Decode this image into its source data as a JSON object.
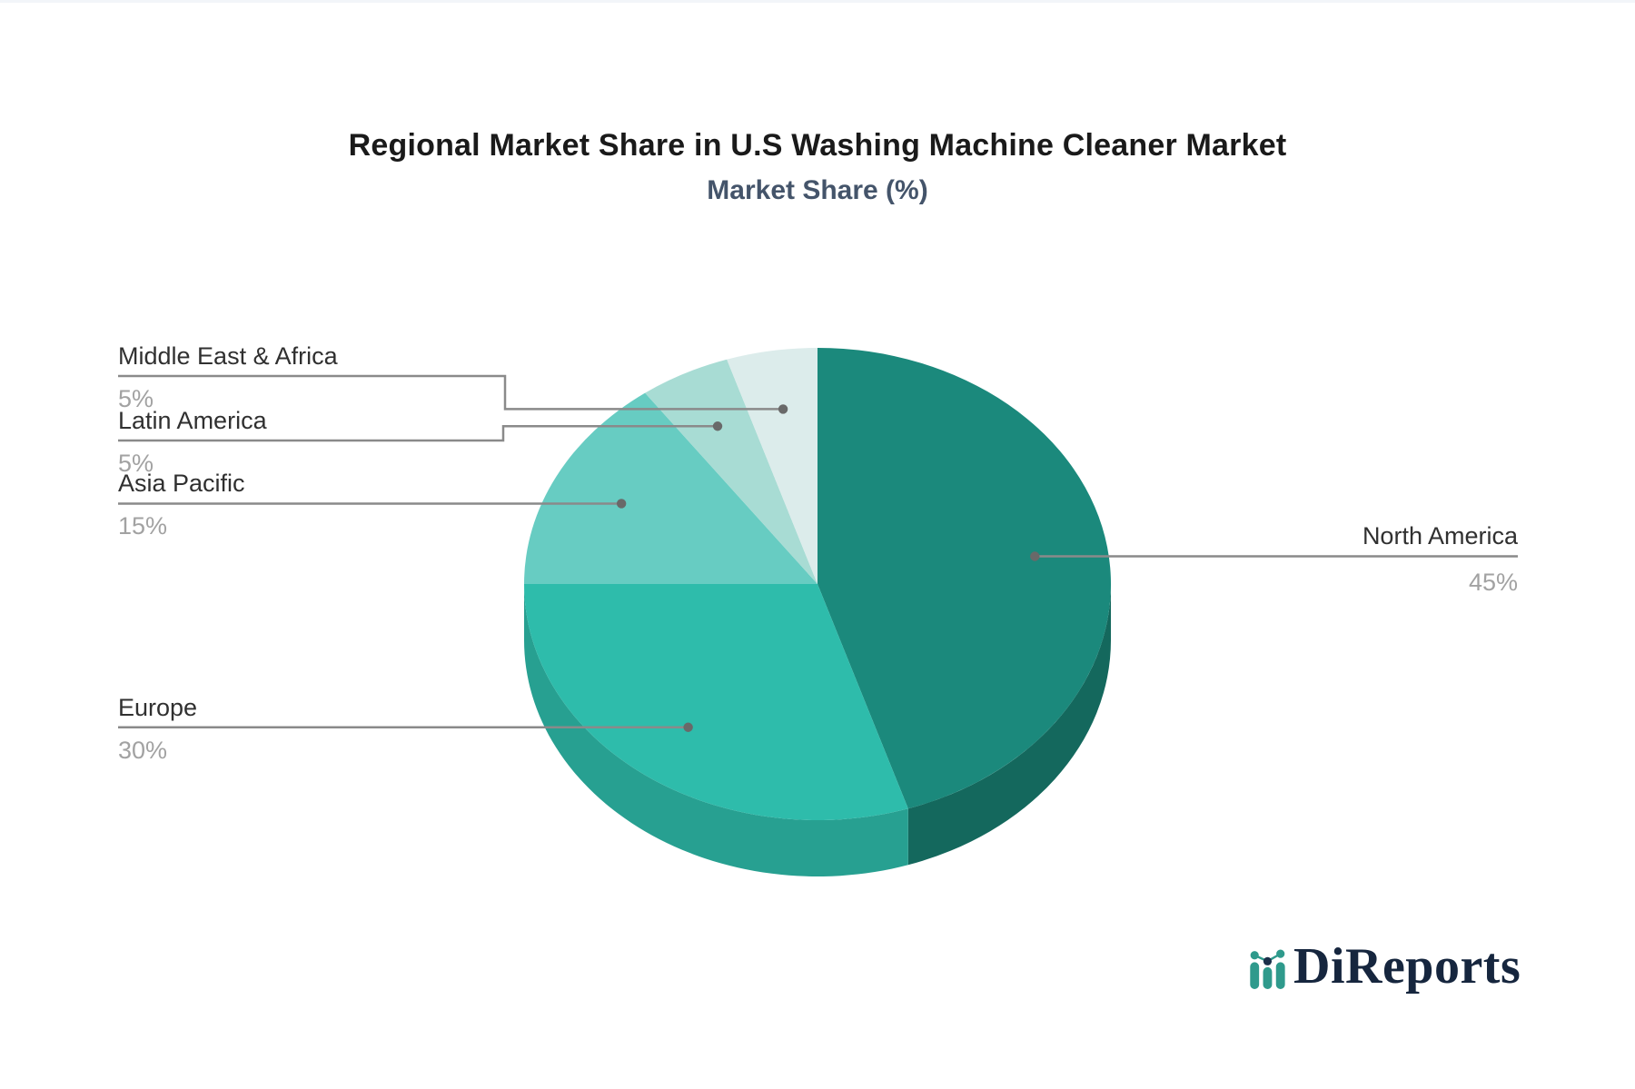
{
  "header": {
    "title": "Regional Market Share in U.S Washing Machine Cleaner Market",
    "subtitle": "Market Share (%)"
  },
  "chart_data": {
    "type": "pie",
    "style": "pie-3d",
    "title": "Regional Market Share in U.S Washing Machine Cleaner Market",
    "subtitle": "Market Share (%)",
    "unit": "%",
    "start_angle_deg": 0,
    "direction": "clockwise-from-top",
    "legend": "none",
    "labels": "callout-lines",
    "slices": [
      {
        "label": "North America",
        "value": 45,
        "pct_label": "45%",
        "color": "#1b897c",
        "side_color": "#14685d"
      },
      {
        "label": "Europe",
        "value": 30,
        "pct_label": "30%",
        "color": "#2ebcab",
        "side_color": "#27a091"
      },
      {
        "label": "Asia Pacific",
        "value": 15,
        "pct_label": "15%",
        "color": "#67ccc2",
        "side_color": "#4fb3a8"
      },
      {
        "label": "Latin America",
        "value": 5,
        "pct_label": "5%",
        "color": "#a8dcd4",
        "side_color": "#8cc6bd"
      },
      {
        "label": "Middle East & Africa",
        "value": 5,
        "pct_label": "5%",
        "color": "#dceceb",
        "side_color": "#c2dcd8"
      }
    ]
  },
  "callout_style": {
    "line_color": "#8a8a8a",
    "dot_color": "#696969",
    "name_color": "#303030",
    "pct_color": "#a2a2a2"
  },
  "branding": {
    "logo_text": "DiReports"
  }
}
